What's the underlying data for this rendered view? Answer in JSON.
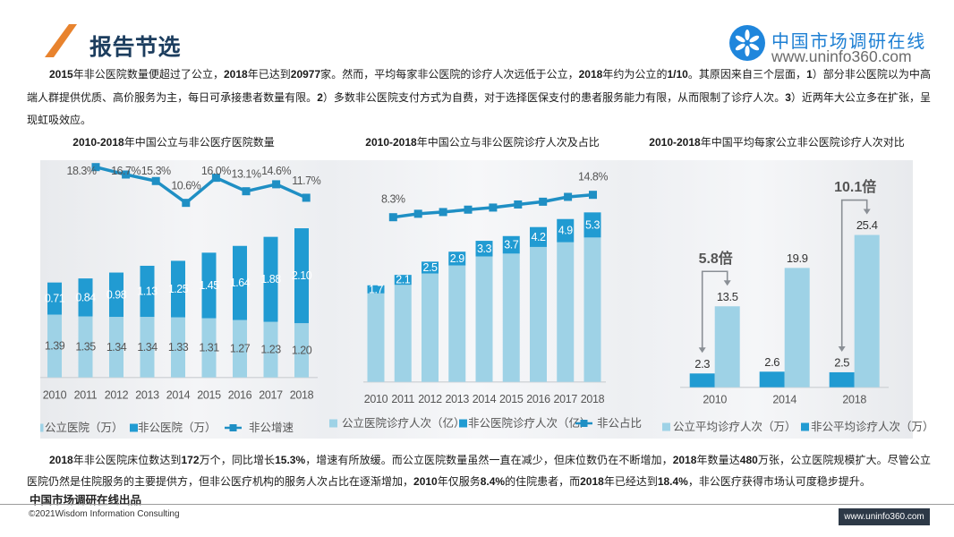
{
  "header": {
    "title": "报告节选"
  },
  "logo": {
    "name": "中国市场调研在线",
    "url": "www.uninfo360.com"
  },
  "intro_paragraph": [
    {
      "t": "2015",
      "b": true
    },
    {
      "t": "年非公医院数量便超过了公立，"
    },
    {
      "t": "2018",
      "b": true
    },
    {
      "t": "年已达到"
    },
    {
      "t": "20977",
      "b": true
    },
    {
      "t": "家。然而，平均每家非公医院的诊疗人次远低于公立，"
    },
    {
      "t": "2018",
      "b": true
    },
    {
      "t": "年约为公立的"
    },
    {
      "t": "1/10",
      "b": true
    },
    {
      "t": "。其原因来自三个层面，"
    },
    {
      "t": "1",
      "b": true
    },
    {
      "t": "）部分非公医院以为中高端人群提供优质、高价服务为主，每日可承接患者数量有限。"
    },
    {
      "t": "2",
      "b": true
    },
    {
      "t": "）多数非公医院支付方式为自费，对于选择医保支付的患者服务能力有限，从而限制了诊疗人次。"
    },
    {
      "t": "3",
      "b": true
    },
    {
      "t": "）近两年大公立多在扩张，呈现虹吸效应。"
    }
  ],
  "chart_data": [
    {
      "type": "bar",
      "title": "2010-2018年中国公立与非公医疗医院数量",
      "categories": [
        "2010",
        "2011",
        "2012",
        "2013",
        "2014",
        "2015",
        "2016",
        "2017",
        "2018"
      ],
      "series": [
        {
          "name": "公立医院（万）",
          "type": "bar",
          "stack": "total",
          "color": "#9ed2e6",
          "values": [
            1.39,
            1.35,
            1.34,
            1.34,
            1.33,
            1.31,
            1.27,
            1.23,
            1.2
          ]
        },
        {
          "name": "非公医院（万）",
          "type": "bar",
          "stack": "total",
          "color": "#219bd2",
          "values": [
            0.71,
            0.84,
            0.98,
            1.13,
            1.25,
            1.45,
            1.64,
            1.88,
            2.1
          ]
        },
        {
          "name": "非公增速",
          "type": "line",
          "unit": "%",
          "color": "#1f8fc4",
          "values": [
            null,
            18.3,
            16.7,
            15.3,
            10.6,
            16.0,
            13.1,
            14.6,
            11.7
          ]
        }
      ],
      "xlabel": "",
      "ylabel": "",
      "legend": "bottom",
      "grid": false
    },
    {
      "type": "bar",
      "title": "2010-2018年中国公立与非公医院诊疗人次及占比",
      "categories": [
        "2010",
        "2011",
        "2012",
        "2013",
        "2014",
        "2015",
        "2016",
        "2017",
        "2018"
      ],
      "series": [
        {
          "name": "公立医院诊疗人次（亿）",
          "type": "bar",
          "stack": "total",
          "color": "#9ed2e6",
          "labeled": false,
          "estimated": true,
          "values": [
            18.7,
            20.5,
            22.9,
            24.6,
            26.5,
            27.1,
            28.5,
            29.5,
            30.5
          ]
        },
        {
          "name": "非公医院诊疗人次（亿）",
          "type": "bar",
          "stack": "total",
          "color": "#219bd2",
          "values": [
            1.7,
            2.1,
            2.5,
            2.9,
            3.3,
            3.7,
            4.2,
            4.9,
            5.3
          ]
        },
        {
          "name": "非公占比",
          "type": "line",
          "unit": "%",
          "color": "#1f8fc4",
          "labeled_points": [
            0,
            8
          ],
          "estimated_unlabeled": true,
          "values": [
            8.3,
            9.3,
            9.8,
            10.5,
            11.1,
            12.0,
            12.8,
            14.2,
            14.8
          ]
        }
      ],
      "xlabel": "",
      "ylabel": "",
      "legend": "bottom",
      "grid": false
    },
    {
      "type": "bar",
      "title": "2010-2018年中国平均每家公立非公医院诊疗人次对比",
      "categories": [
        "2010",
        "2014",
        "2018"
      ],
      "series": [
        {
          "name": "公立平均诊疗人次（万）",
          "type": "bar",
          "color": "#9ed2e6",
          "values": [
            13.5,
            19.9,
            25.4
          ]
        },
        {
          "name": "非公平均诊疗人次（万）",
          "type": "bar",
          "color": "#219bd2",
          "values": [
            2.3,
            2.6,
            2.5
          ]
        }
      ],
      "annotations": [
        {
          "category": "2010",
          "text": "5.8倍"
        },
        {
          "category": "2018",
          "text": "10.1倍"
        }
      ],
      "xlabel": "",
      "ylabel": "",
      "legend": "bottom",
      "grid": false
    }
  ],
  "summary_paragraph": [
    {
      "t": "2018",
      "b": true
    },
    {
      "t": "年非公医院床位数达到"
    },
    {
      "t": "172",
      "b": true
    },
    {
      "t": "万个，同比增长"
    },
    {
      "t": "15.3%",
      "b": true
    },
    {
      "t": "，增速有所放缓。而公立医院数量虽然一直在减少，但床位数仍在不断增加，"
    },
    {
      "t": "2018",
      "b": true
    },
    {
      "t": "年数量达"
    },
    {
      "t": "480",
      "b": true
    },
    {
      "t": "万张，公立医院规模扩大。尽管公立医院仍然是住院服务的主要提供方，但非公医疗机构的服务人次占比在逐渐增加，"
    },
    {
      "t": "2010",
      "b": true
    },
    {
      "t": "年仅服务"
    },
    {
      "t": "8.4%",
      "b": true
    },
    {
      "t": "的住院患者，而"
    },
    {
      "t": "2018",
      "b": true
    },
    {
      "t": "年已经达到"
    },
    {
      "t": "18.4%",
      "b": true
    },
    {
      "t": "，非公医疗获得市场认可度稳步提升。"
    }
  ],
  "footer": {
    "producer": "中国市场调研在线出品",
    "copyright": "©2021Wisdom Information Consulting",
    "website_badge": "www.uninfo360.com"
  },
  "colors": {
    "accent_orange": "#e8832e",
    "title_navy": "#1c3d5e",
    "brand_blue": "#1f86dc",
    "axis": "#d3d6da",
    "annotation_arrow": "#8a8f95",
    "footer_badge": "#2d3947"
  }
}
